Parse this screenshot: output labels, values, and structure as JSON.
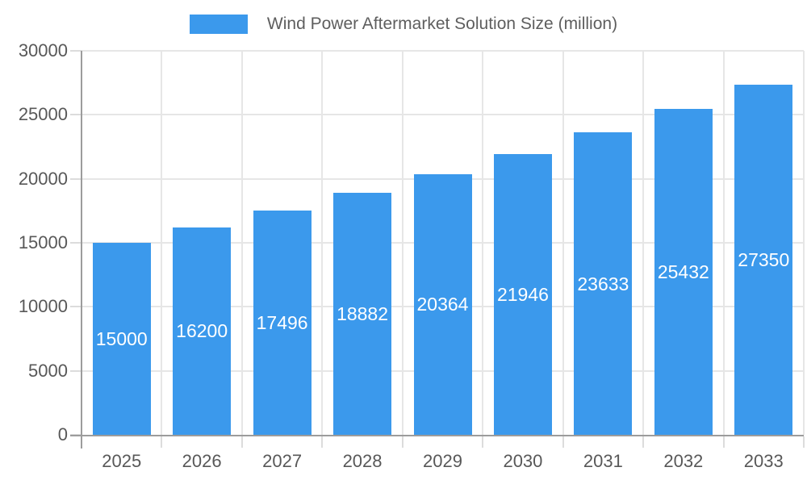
{
  "legend": {
    "label": "Wind Power Aftermarket Solution Size (million)"
  },
  "chart_data": {
    "type": "bar",
    "title": "Wind Power Aftermarket Solution Size (million)",
    "categories": [
      "2025",
      "2026",
      "2027",
      "2028",
      "2029",
      "2030",
      "2031",
      "2032",
      "2033"
    ],
    "values": [
      15000,
      16200,
      17496,
      18882,
      20364,
      21946,
      23633,
      25432,
      27350
    ],
    "value_labels": [
      "15000",
      "16200",
      "17496",
      "18882",
      "20364",
      "21946",
      "23633",
      "25432",
      "27350"
    ],
    "xlabel": "",
    "ylabel": "",
    "ylim": [
      0,
      30000
    ],
    "ytick_step": 5000,
    "yticks": [
      0,
      5000,
      10000,
      15000,
      20000,
      25000,
      30000
    ],
    "grid": true,
    "legend_position": "top",
    "colors": {
      "bar": "#3B99EC",
      "grid": "#E6E6E6",
      "tick": "#DCDCDC",
      "axis": "#9C9C9C",
      "tick_label": "#585858",
      "legend_label": "#5E5E5E",
      "value_label": "#FFFFFF",
      "background": "#FFFFFF"
    }
  }
}
